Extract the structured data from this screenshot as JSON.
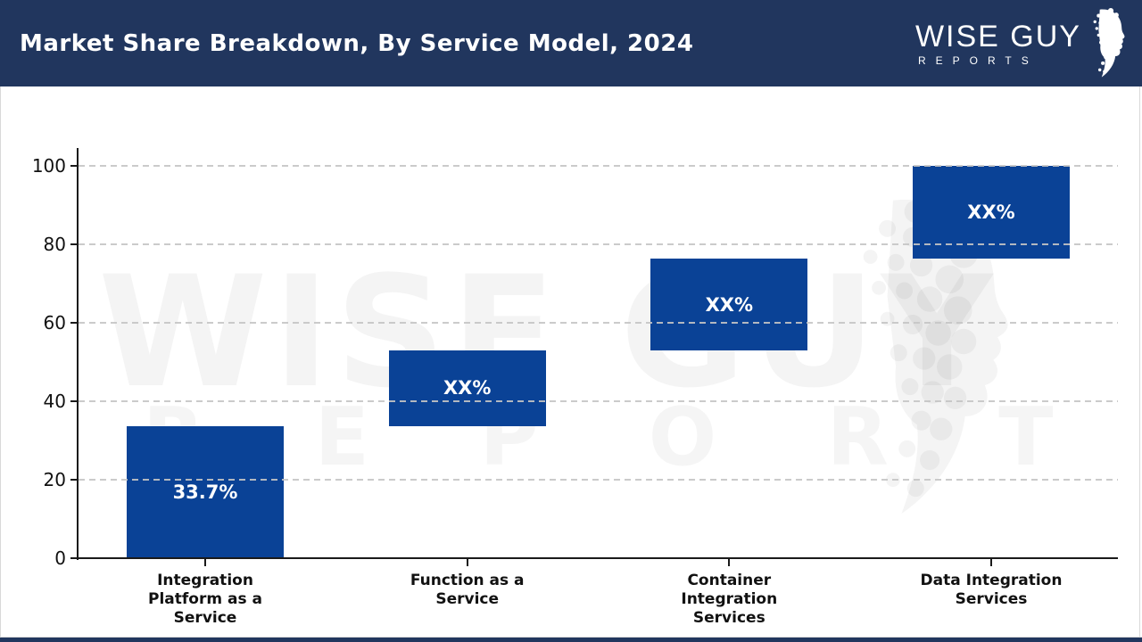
{
  "header": {
    "title": "Market Share Breakdown, By Service Model, 2024"
  },
  "brand": {
    "name": "WISE GUY",
    "subtitle": "REPORTS"
  },
  "watermark": {
    "line1": "WISE GUY",
    "line2": "R E P O R T S"
  },
  "colors": {
    "header_bg": "#21365E",
    "footer_bg": "#21365E",
    "bar": "#0A4296",
    "grid": "#C5C5C5",
    "axis": "#1A1A1A",
    "value_label": "#FFFFFF"
  },
  "chart_data": {
    "type": "bar",
    "subtype": "waterfall",
    "title": "Market Share Breakdown, By Service Model, 2024",
    "xlabel": "",
    "ylabel": "",
    "ylim": [
      0,
      100
    ],
    "yticks": [
      0,
      20,
      40,
      60,
      80,
      100
    ],
    "grid": "horizontal-dashed",
    "legend": "none",
    "bar_color": "#0A4296",
    "categories": [
      "Integration Platform as a Service",
      "Function as a Service",
      "Container Integration Services",
      "Data Integration Services"
    ],
    "category_label_lines": [
      [
        "Integration",
        "Platform as a",
        "Service"
      ],
      [
        "Function as a",
        "Service"
      ],
      [
        "Container",
        "Integration",
        "Services"
      ],
      [
        "Data Integration",
        "Services"
      ]
    ],
    "segments": [
      {
        "category": "Integration Platform as a Service",
        "start": 0,
        "end": 33.7,
        "label": "33.7%"
      },
      {
        "category": "Function as a Service",
        "start": 33.7,
        "end": 53,
        "label": "XX%"
      },
      {
        "category": "Container Integration Services",
        "start": 53,
        "end": 76.3,
        "label": "XX%"
      },
      {
        "category": "Data Integration Services",
        "start": 76.3,
        "end": 100,
        "label": "XX%"
      }
    ]
  }
}
